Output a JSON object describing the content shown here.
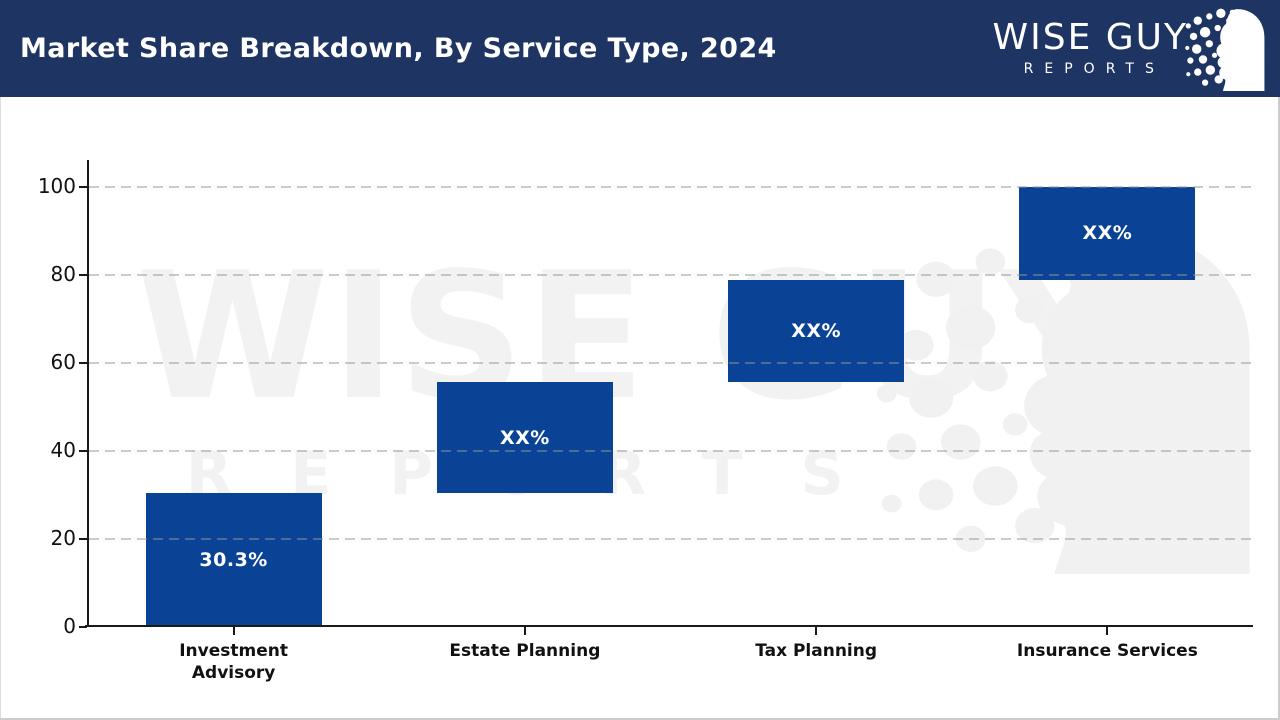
{
  "header": {
    "title": "Market Share Breakdown, By Service Type, 2024",
    "bg_color": "#1e3463",
    "logo": {
      "line1": "WISE GUY",
      "line2": "REPORTS",
      "head_icon": "dotted-head-icon"
    }
  },
  "watermark": {
    "line1": "WISE GUY",
    "line2": "REPORTS",
    "color": "#f2f2f2"
  },
  "chart_data": {
    "type": "bar",
    "variant": "waterfall",
    "title": "Market Share Breakdown, By Service Type, 2024",
    "categories": [
      "Investment Advisory",
      "Estate Planning",
      "Tax Planning",
      "Insurance Services"
    ],
    "category_display": [
      "Investment\nAdvisory",
      "Estate Planning",
      "Tax Planning",
      "Insurance Services"
    ],
    "segments": [
      {
        "category": "Investment Advisory",
        "start": 0,
        "end": 30.3,
        "label": "30.3%"
      },
      {
        "category": "Estate Planning",
        "start": 30.3,
        "end": 55.5,
        "label": "XX%"
      },
      {
        "category": "Tax Planning",
        "start": 55.5,
        "end": 78.7,
        "label": "XX%"
      },
      {
        "category": "Insurance Services",
        "start": 78.7,
        "end": 100,
        "label": "XX%"
      }
    ],
    "bar_labels": [
      "30.3%",
      "XX%",
      "XX%",
      "XX%"
    ],
    "yticks": [
      0,
      20,
      40,
      60,
      80,
      100
    ],
    "ylim": [
      0,
      105
    ],
    "xlabel": "",
    "ylabel": "",
    "legend": "none",
    "grid": "horizontal-dashed",
    "bar_color": "#0a4296",
    "bar_label_color": "#ffffff"
  }
}
